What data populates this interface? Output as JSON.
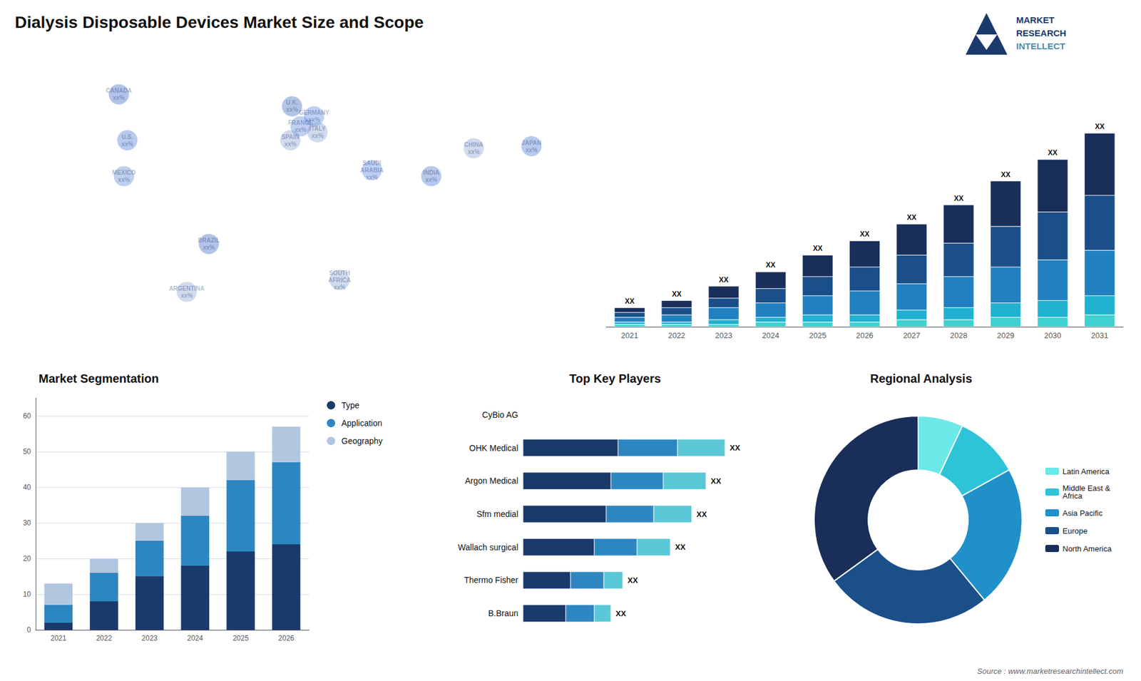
{
  "title": "Dialysis Disposable Devices Market Size and Scope",
  "annotations": [
    {
      "text": "MARKET",
      "color": "#1a3a6b"
    },
    {
      "text": "RESEARCH",
      "color": "#1a3a6b"
    },
    {
      "text": "INTELLECT",
      "color": "#4a8ab0"
    },
    {
      "text": "Source : www.marketresearchintellect.com"
    }
  ],
  "chart_data": [
    {
      "type": "scatter",
      "x": [
        -105,
        -100,
        -102,
        -52,
        -65,
        -3,
        2,
        -4,
        10,
        12,
        44,
        25,
        104,
        138,
        79
      ],
      "values": [
        63,
        40,
        22,
        -12,
        -36,
        57,
        47,
        40,
        52,
        44,
        25,
        -30,
        36,
        37,
        22
      ],
      "value_labels": [
        "CANADA\nxx%",
        "U.S.\nxx%",
        "MEXICO\nxx%",
        "BRAZIL\nxx%",
        "ARGENTINA\nxx%",
        "U.K.\nxx%",
        "FRANCE\nxx%",
        "SPAIN\nxx%",
        "GERMANY\nxx%",
        "ITALY\nxx%",
        "SAUDI\nARABIA\nxx%",
        "SOUTH\nAFRICA\nxx%",
        "CHINA\nxx%",
        "JAPAN\nxx%",
        "INDIA\nxx%"
      ],
      "colors": [
        "#2255bb",
        "#3366cc",
        "#4477cc",
        "#2255bb",
        "#7799cc",
        "#2255bb",
        "#4477dd",
        "#7799cc",
        "#4477dd",
        "#7799cc",
        "#4477dd",
        "#7799cc",
        "#7799cc",
        "#3366cc",
        "#3366cc"
      ],
      "xlim": [
        -168,
        168
      ],
      "ylim": [
        -58,
        82
      ],
      "tick_labels": false,
      "grid": false
    },
    {
      "type": "bar",
      "stacked": true,
      "categories": [
        "2021",
        "2022",
        "2023",
        "2024",
        "2025",
        "2026",
        "2027",
        "2028",
        "2029",
        "2030",
        "2031"
      ],
      "series": [
        {
          "color": "#40d0d0",
          "values": [
            1,
            1,
            1,
            2,
            2,
            2,
            3,
            3,
            4,
            4,
            5
          ]
        },
        {
          "color": "#20b0d0",
          "values": [
            1,
            1,
            2,
            2,
            3,
            3,
            4,
            5,
            6,
            7,
            8
          ]
        },
        {
          "color": "#2080c0",
          "values": [
            2,
            3,
            5,
            6,
            8,
            10,
            11,
            13,
            15,
            17,
            19
          ]
        },
        {
          "color": "#1a4f8a",
          "values": [
            2,
            3,
            4,
            6,
            8,
            10,
            12,
            14,
            17,
            20,
            23
          ]
        },
        {
          "color": "#1a2e5a",
          "values": [
            2,
            3,
            5,
            7,
            9,
            11,
            13,
            16,
            19,
            22,
            26
          ],
          "value_labels": [
            "XX",
            "XX",
            "XX",
            "XX",
            "XX",
            "XX",
            "XX",
            "XX",
            "XX",
            "XX",
            "XX"
          ]
        }
      ],
      "ylim": [
        0,
        109.35
      ],
      "tick_labels": "x",
      "grid": false
    },
    {
      "type": "bar",
      "stacked": true,
      "title": "Market Segmentation",
      "categories": [
        "2021",
        "2022",
        "2023",
        "2024",
        "2025",
        "2026"
      ],
      "series": [
        {
          "name": "Type",
          "color": "#1a3a6b",
          "values": [
            2,
            8,
            15,
            18,
            22,
            24
          ]
        },
        {
          "name": "Application",
          "color": "#2e86c1",
          "values": [
            5,
            8,
            10,
            14,
            20,
            23
          ]
        },
        {
          "name": "Geography",
          "color": "#b3c6e0",
          "values": [
            6,
            4,
            5,
            8,
            8,
            10
          ]
        }
      ],
      "ylim": [
        0,
        65
      ],
      "yticks": [
        0,
        10,
        20,
        30,
        40,
        50,
        60
      ],
      "grid": true,
      "legend": "right"
    },
    {
      "type": "bar",
      "stacked": true,
      "orientation": "horizontal",
      "title": "Top Key Players",
      "categories": [
        "CyBio AG",
        "OHK Medical",
        "Argon Medical",
        "Sfm medial",
        "Wallach surgical",
        "Thermo Fisher",
        "B.Braun"
      ],
      "series": [
        {
          "color": "#1a3a6b",
          "values": [
            0,
            40,
            37,
            35,
            30,
            20,
            18
          ]
        },
        {
          "color": "#2e86c1",
          "values": [
            0,
            25,
            22,
            20,
            18,
            14,
            12
          ]
        },
        {
          "color": "#5bc8d8",
          "values": [
            0,
            20,
            18,
            16,
            14,
            8,
            7
          ],
          "value_labels": [
            null,
            "XX",
            "XX",
            "XX",
            "XX",
            "XX",
            "XX"
          ]
        }
      ],
      "xlim": [
        0,
        105
      ],
      "tick_labels": "y",
      "grid": false
    },
    {
      "type": "pie",
      "title": "Regional Analysis",
      "categories": [
        "Latin America",
        "Middle East &\nAfrica",
        "Asia Pacific",
        "Europe",
        "North America"
      ],
      "values": [
        7,
        10,
        22,
        26,
        35
      ],
      "colors": [
        "#6ce8e8",
        "#2ec4d8",
        "#2090c8",
        "#1a4f8a",
        "#1a2e5a"
      ],
      "legend": "right"
    }
  ]
}
